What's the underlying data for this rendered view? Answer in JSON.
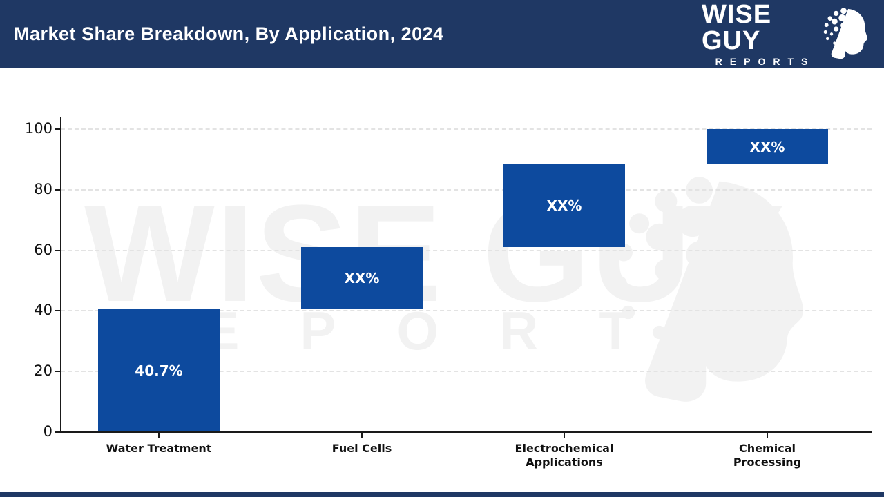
{
  "header": {
    "title": "Market Share Breakdown, By Application, 2024"
  },
  "logo": {
    "main": "WISE GUY",
    "sub": "REPORTS"
  },
  "watermark": {
    "line1": "WISE GUY",
    "line2": "REPORTS"
  },
  "chart_data": {
    "type": "bar",
    "subtype": "waterfall",
    "title": "Market Share Breakdown, By Application, 2024",
    "categories": [
      "Water Treatment",
      "Fuel Cells",
      "Electrochemical\nApplications",
      "Chemical\nProcessing"
    ],
    "segments": [
      {
        "category": "Water Treatment",
        "start": 0,
        "end": 40.7,
        "value": 40.7,
        "label": "40.7%"
      },
      {
        "category": "Fuel Cells",
        "start": 40.7,
        "end": 61.1,
        "value": 20.4,
        "label": "XX%"
      },
      {
        "category": "Electrochemical Applications",
        "start": 61.1,
        "end": 88.3,
        "value": 27.2,
        "label": "XX%"
      },
      {
        "category": "Chemical Processing",
        "start": 88.3,
        "end": 100,
        "value": 11.7,
        "label": "XX%"
      }
    ],
    "y_ticks": [
      0,
      20,
      40,
      60,
      80,
      100
    ],
    "ylim": [
      0,
      100
    ],
    "xlabel": "",
    "ylabel": "",
    "grid": "horizontal-dashed",
    "legend": "none"
  },
  "colors": {
    "header_bg": "#1f3864",
    "footer_bg": "#1f3864",
    "bar": "#0d4a9e",
    "bar_label": "#ffffff",
    "grid": "#e3e3e3",
    "axis": "#1a1a1a",
    "watermark": "#f2f2f2"
  }
}
